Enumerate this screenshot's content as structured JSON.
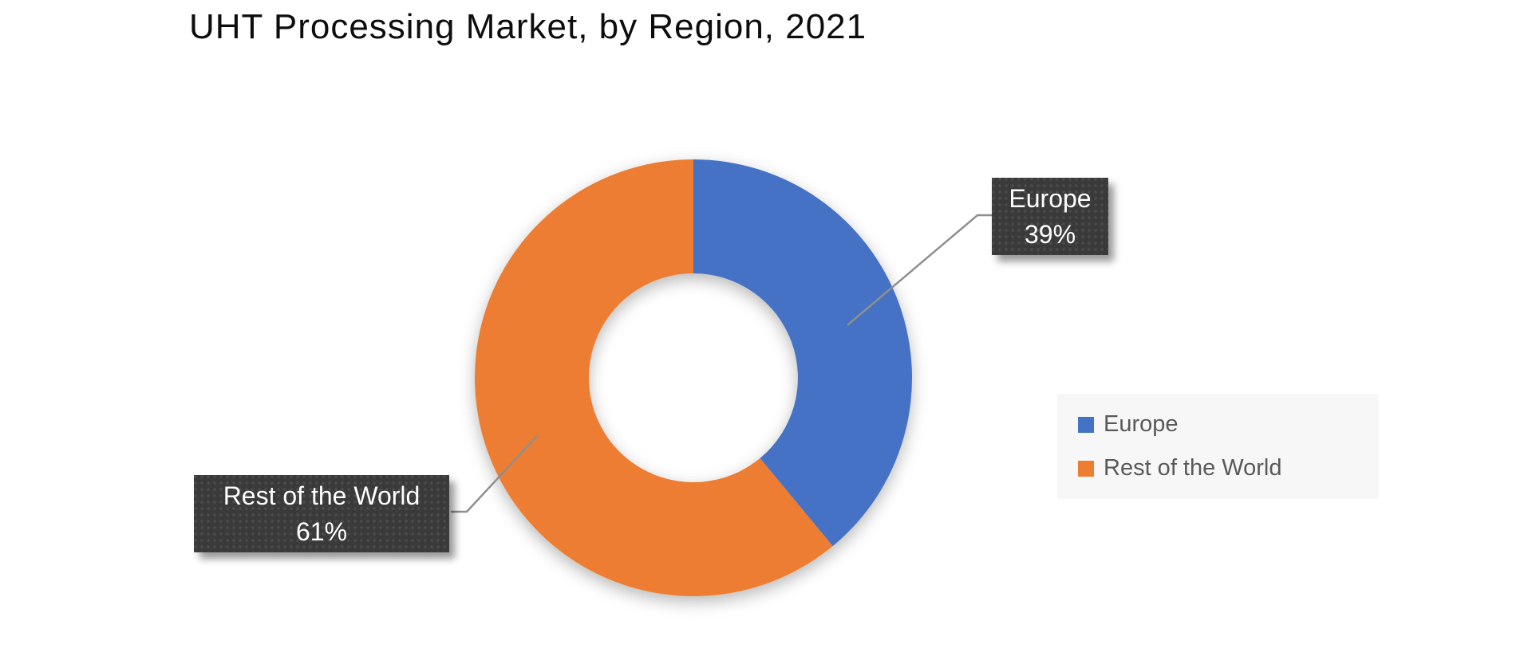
{
  "title": "UHT Processing Market, by Region, 2021",
  "chart_data": {
    "type": "pie",
    "subtype": "donut",
    "title": "UHT Processing Market, by Region, 2021",
    "categories": [
      "Europe",
      "Rest of the World"
    ],
    "values": [
      39,
      61
    ],
    "unit": "%",
    "colors": [
      "#4472C4",
      "#ED7D31"
    ],
    "start_angle": "12-oclock-clockwise",
    "hole_ratio": 0.48,
    "legend_position": "right",
    "data_labels": [
      "Europe 39%",
      "Rest of the World 61%"
    ]
  },
  "callouts": [
    {
      "label": "Europe",
      "value_text": "39%"
    },
    {
      "label": "Rest of the World",
      "value_text": "61%"
    }
  ],
  "legend": {
    "items": [
      {
        "label": "Europe",
        "color": "#4472C4"
      },
      {
        "label": "Rest of the World",
        "color": "#ED7D31"
      }
    ]
  },
  "style_colors": {
    "slice_europe": "#4472C4",
    "slice_rest_of_the_world": "#ED7D31",
    "callout_background": "#3A3A3A",
    "callout_text": "#FFFFFF",
    "leader_line": "#8F8F8F",
    "legend_background": "#F7F7F7",
    "legend_text": "#595959",
    "title_text": "#0D0D0D",
    "page_background": "#FFFFFF"
  }
}
